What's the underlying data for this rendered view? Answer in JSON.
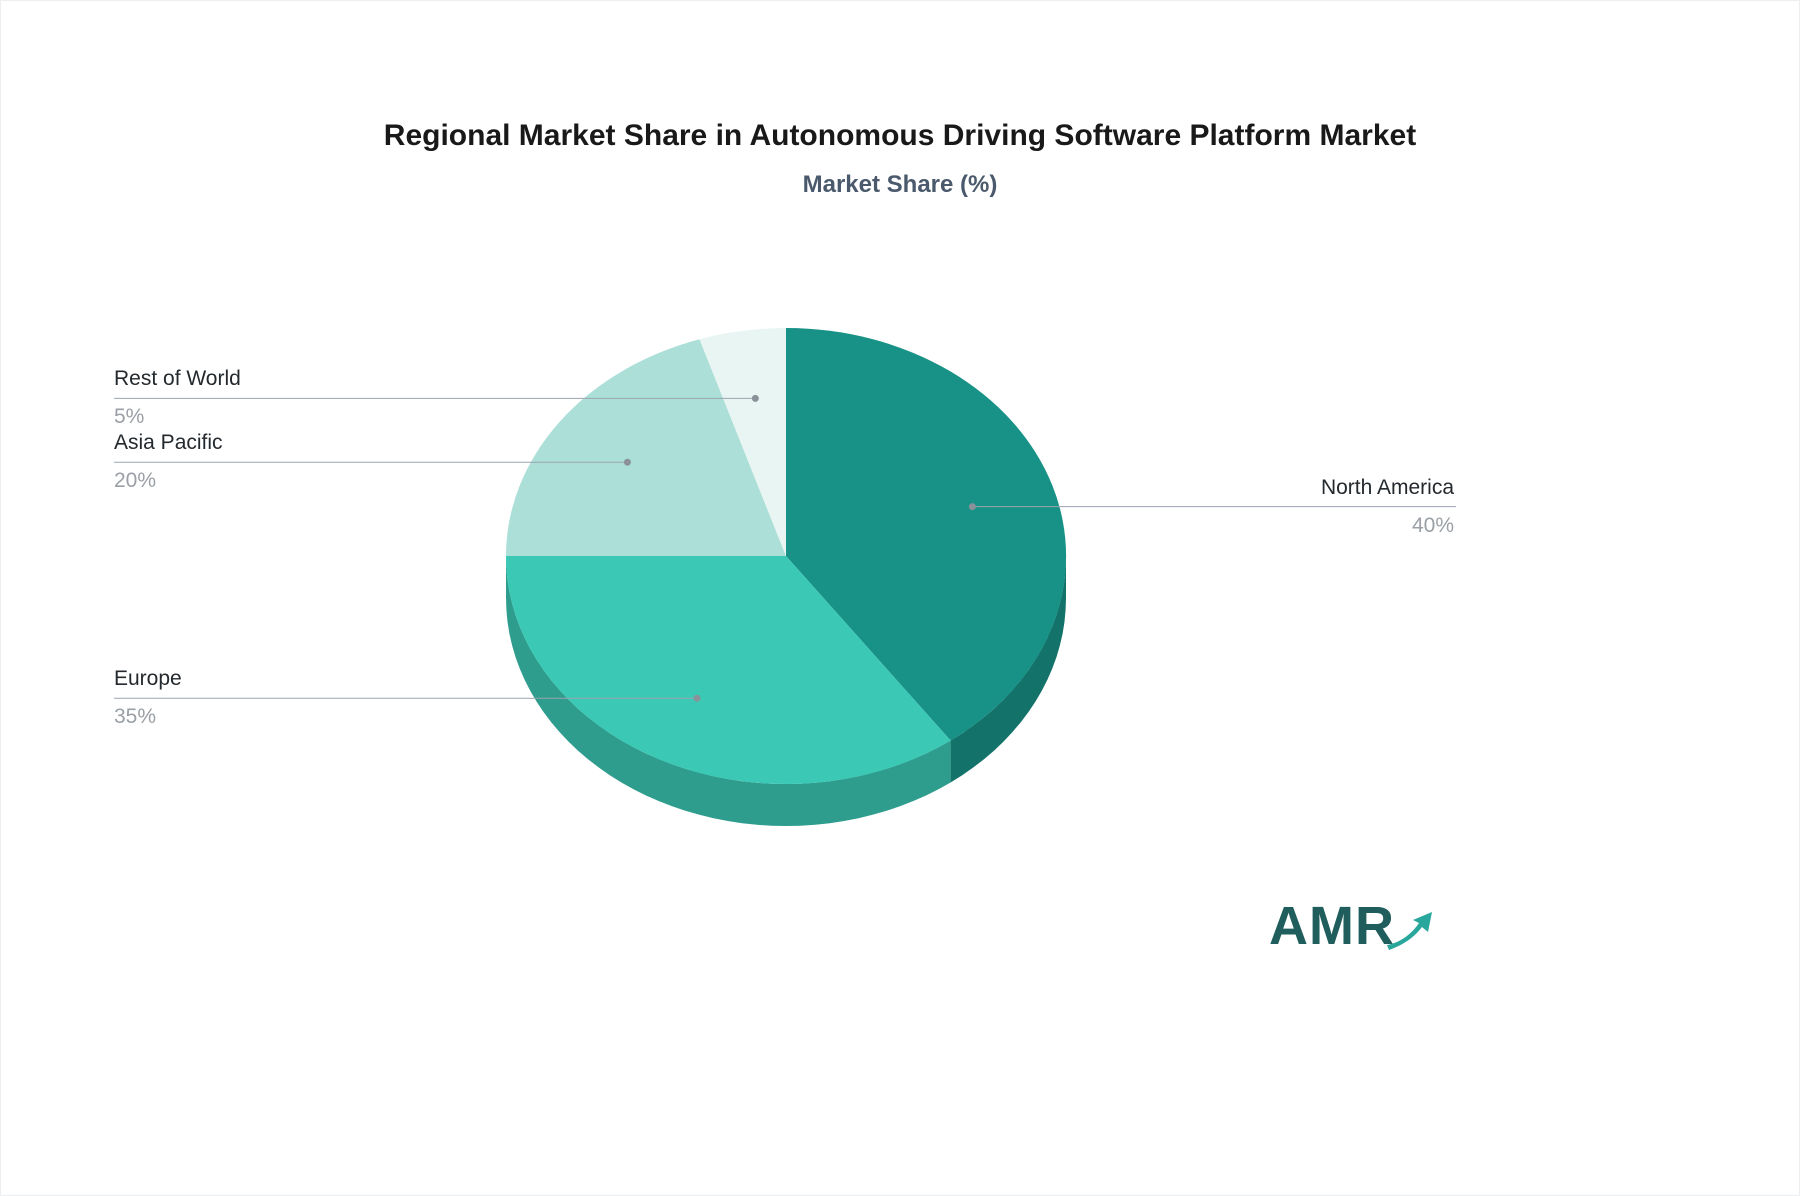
{
  "page": {
    "title": "Regional Market Share in Autonomous Driving Software Platform Market",
    "subtitle": "Market Share (%)"
  },
  "chart_data": {
    "type": "pie",
    "title": "Regional Market Share in Autonomous Driving Software Platform Market",
    "subtitle": "Market Share (%)",
    "unit": "%",
    "direction": "clockwise",
    "start_angle_deg": 0,
    "effect": "3d",
    "legend_position": "none",
    "label_style": "leader-lines",
    "slices": [
      {
        "label": "North America",
        "value": 40,
        "display_value": "40%",
        "color": "#189286"
      },
      {
        "label": "Europe",
        "value": 35,
        "display_value": "35%",
        "color": "#3bc9b6"
      },
      {
        "label": "Asia Pacific",
        "value": 20,
        "display_value": "20%",
        "color": "#abdfd8"
      },
      {
        "label": "Rest of World",
        "value": 5,
        "display_value": "5%",
        "color": "#e9f5f3"
      }
    ],
    "colors": {
      "line": "#9ca3af",
      "dot": "#8b9198",
      "title": "#191919",
      "subtitle": "#4a5a6c",
      "label_name": "#24292e",
      "label_value": "#9aa0a6"
    }
  },
  "logo": {
    "text": "AMR",
    "arrow_color": "#2aa79c"
  }
}
